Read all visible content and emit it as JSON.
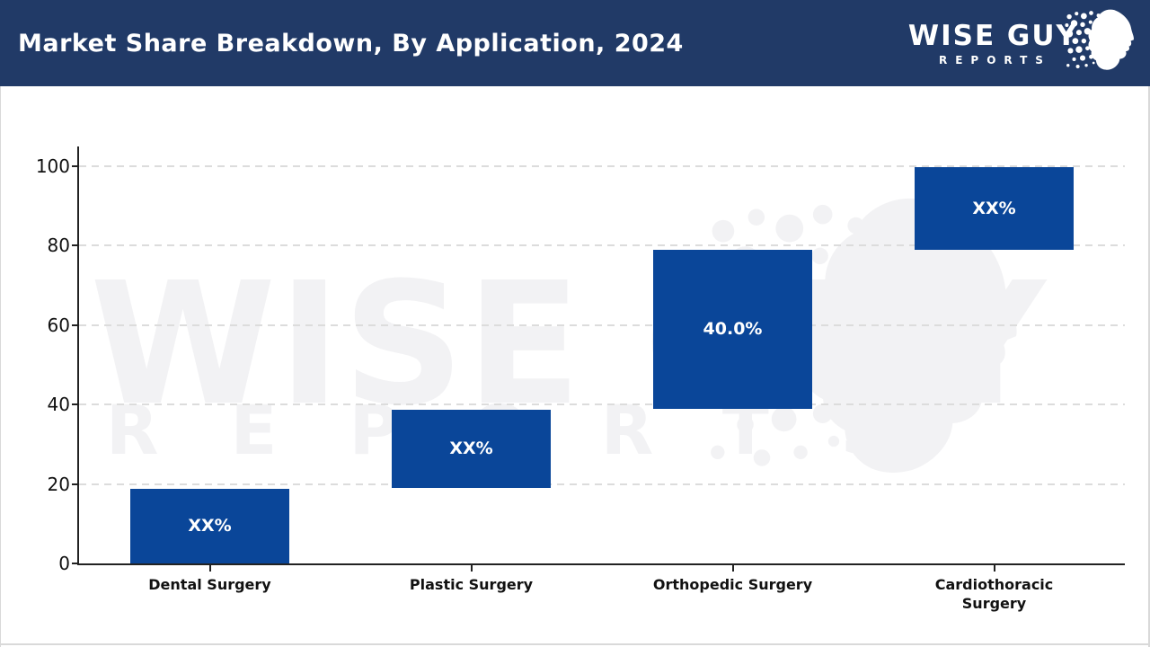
{
  "header": {
    "title": "Market Share Breakdown, By Application, 2024",
    "logo": {
      "brand": "WISE GUY",
      "sub": "REPORTS"
    }
  },
  "watermark": {
    "brand": "WISE GUY",
    "sub": "REPORTS"
  },
  "chart_data": {
    "type": "bar",
    "subtype": "floating_segment_waterfall",
    "title": "Market Share Breakdown, By Application, 2024",
    "categories": [
      "Dental Surgery",
      "Plastic Surgery",
      "Orthopedic Surgery",
      "Cardiothoracic\nSurgery"
    ],
    "segments": [
      {
        "category": "Dental Surgery",
        "start": 0.0,
        "end": 18.8,
        "label": "XX%"
      },
      {
        "category": "Plastic Surgery",
        "start": 19.0,
        "end": 38.7,
        "label": "XX%"
      },
      {
        "category": "Orthopedic Surgery",
        "start": 39.0,
        "end": 79.0,
        "label": "40.0%"
      },
      {
        "category": "Cardiothoracic Surgery",
        "start": 79.0,
        "end": 99.8,
        "label": "XX%"
      }
    ],
    "ylim": [
      0,
      100
    ],
    "yticks": [
      0,
      20,
      40,
      60,
      80,
      100
    ],
    "xlabel": "",
    "ylabel": "",
    "grid": {
      "axis": "y",
      "style": "dashed",
      "color": "#dcdcdc"
    },
    "legend": "none",
    "bar_color": "#0a4699"
  },
  "colors": {
    "header_bg": "#213a67",
    "bar": "#0a4699",
    "axis": "#222222",
    "grid": "#dcdcdc",
    "watermark": "#f2f2f4"
  }
}
